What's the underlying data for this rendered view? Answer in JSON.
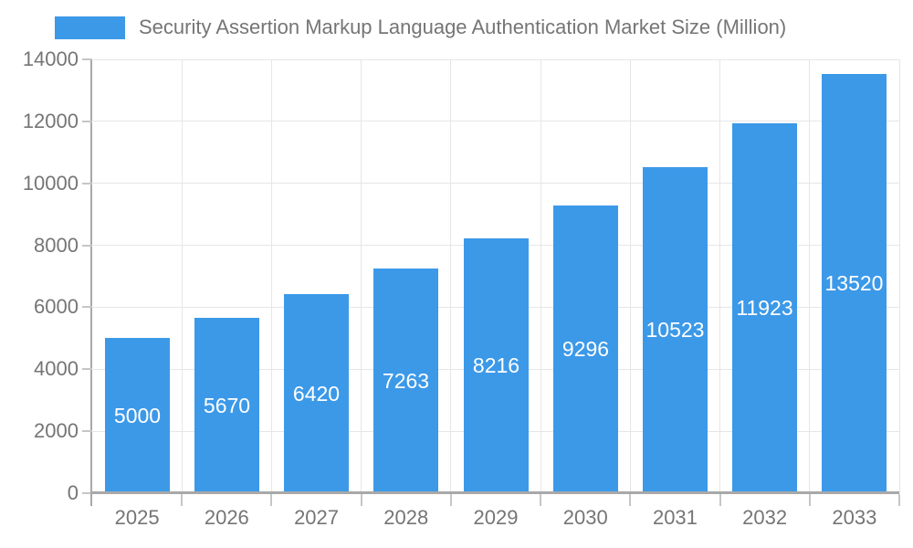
{
  "legend": {
    "label": "Security Assertion Markup Language Authentication Market Size (Million)"
  },
  "chart_data": {
    "type": "bar",
    "title": "Security Assertion Markup Language Authentication Market Size (Million)",
    "categories": [
      "2025",
      "2026",
      "2027",
      "2028",
      "2029",
      "2030",
      "2031",
      "2032",
      "2033"
    ],
    "values": [
      5000,
      5670,
      6420,
      7263,
      8216,
      9296,
      10523,
      11923,
      13520
    ],
    "xlabel": "",
    "ylabel": "",
    "ylim": [
      0,
      14000
    ],
    "ytick_step": 2000,
    "yticks": [
      0,
      2000,
      4000,
      6000,
      8000,
      10000,
      12000,
      14000
    ],
    "grid": true,
    "legend_position": "top",
    "bar_labels_shown": true,
    "colors": {
      "bar": "#3C99E8",
      "bar_label": "#ffffff",
      "axis": "#a8a8a8",
      "tick": "#c6c6c6",
      "grid": "#e6e6e6",
      "text": "#757575"
    }
  }
}
